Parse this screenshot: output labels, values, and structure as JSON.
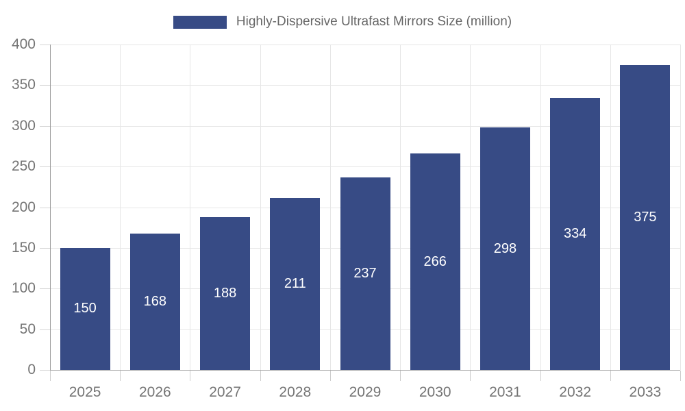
{
  "legend": {
    "label": "Highly-Dispersive Ultrafast Mirrors Size (million)",
    "swatch_color": "#374B85"
  },
  "chart_data": {
    "type": "bar",
    "title": "",
    "xlabel": "",
    "ylabel": "",
    "categories": [
      "2025",
      "2026",
      "2027",
      "2028",
      "2029",
      "2030",
      "2031",
      "2032",
      "2033"
    ],
    "values": [
      150,
      168,
      188,
      211,
      237,
      266,
      298,
      334,
      375
    ],
    "series_name": "Highly-Dispersive Ultrafast Mirrors Size (million)",
    "ylim": [
      0,
      400
    ],
    "yticks": [
      0,
      50,
      100,
      150,
      200,
      250,
      300,
      350,
      400
    ],
    "bar_color": "#374B85",
    "value_label_color": "#ffffff",
    "grid": true,
    "legend_position": "top"
  }
}
